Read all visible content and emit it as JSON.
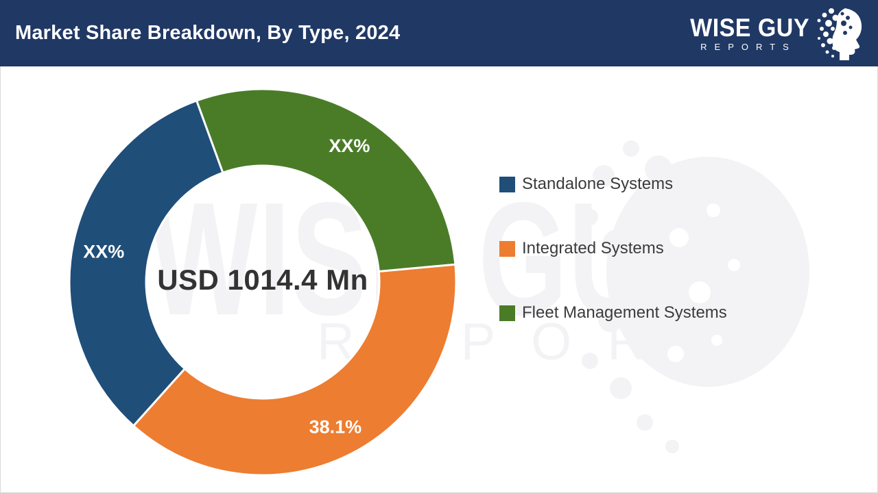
{
  "header": {
    "title": "Market Share Breakdown, By Type, 2024",
    "logo": {
      "line1": "WISE GUY",
      "line2": "REPORTS"
    }
  },
  "watermark": {
    "line1": "WISE GUY",
    "line2": "REPORTS"
  },
  "colors": {
    "header_background": "#203864",
    "standalone_blue": "#1F4E79",
    "integrated_orange": "#ED7D31",
    "fleet_green": "#4A7C28",
    "legend_text": "#3B3B3B",
    "center_text": "#333333",
    "watermark_gray": "#F3F3F5",
    "page_border": "#D9D9D9"
  },
  "chart_data": {
    "type": "pie",
    "subtype": "donut",
    "title": "Market Share Breakdown, By Type, 2024",
    "center_label": "USD 1014.4 Mn",
    "start_angle_deg": -20,
    "legend_position": "right",
    "slices": [
      {
        "label": "Fleet Management Systems",
        "value_pct": 29.1,
        "display": "XX%",
        "color": "#4A7C28"
      },
      {
        "label": "Integrated Systems",
        "value_pct": 38.1,
        "display": "38.1%",
        "color": "#ED7D31"
      },
      {
        "label": "Standalone Systems",
        "value_pct": 32.8,
        "display": "XX%",
        "color": "#1F4E79"
      }
    ],
    "legend": [
      {
        "label": "Standalone Systems",
        "color": "#1F4E79"
      },
      {
        "label": "Integrated Systems",
        "color": "#ED7D31"
      },
      {
        "label": "Fleet Management Systems",
        "color": "#4A7C28"
      }
    ]
  }
}
